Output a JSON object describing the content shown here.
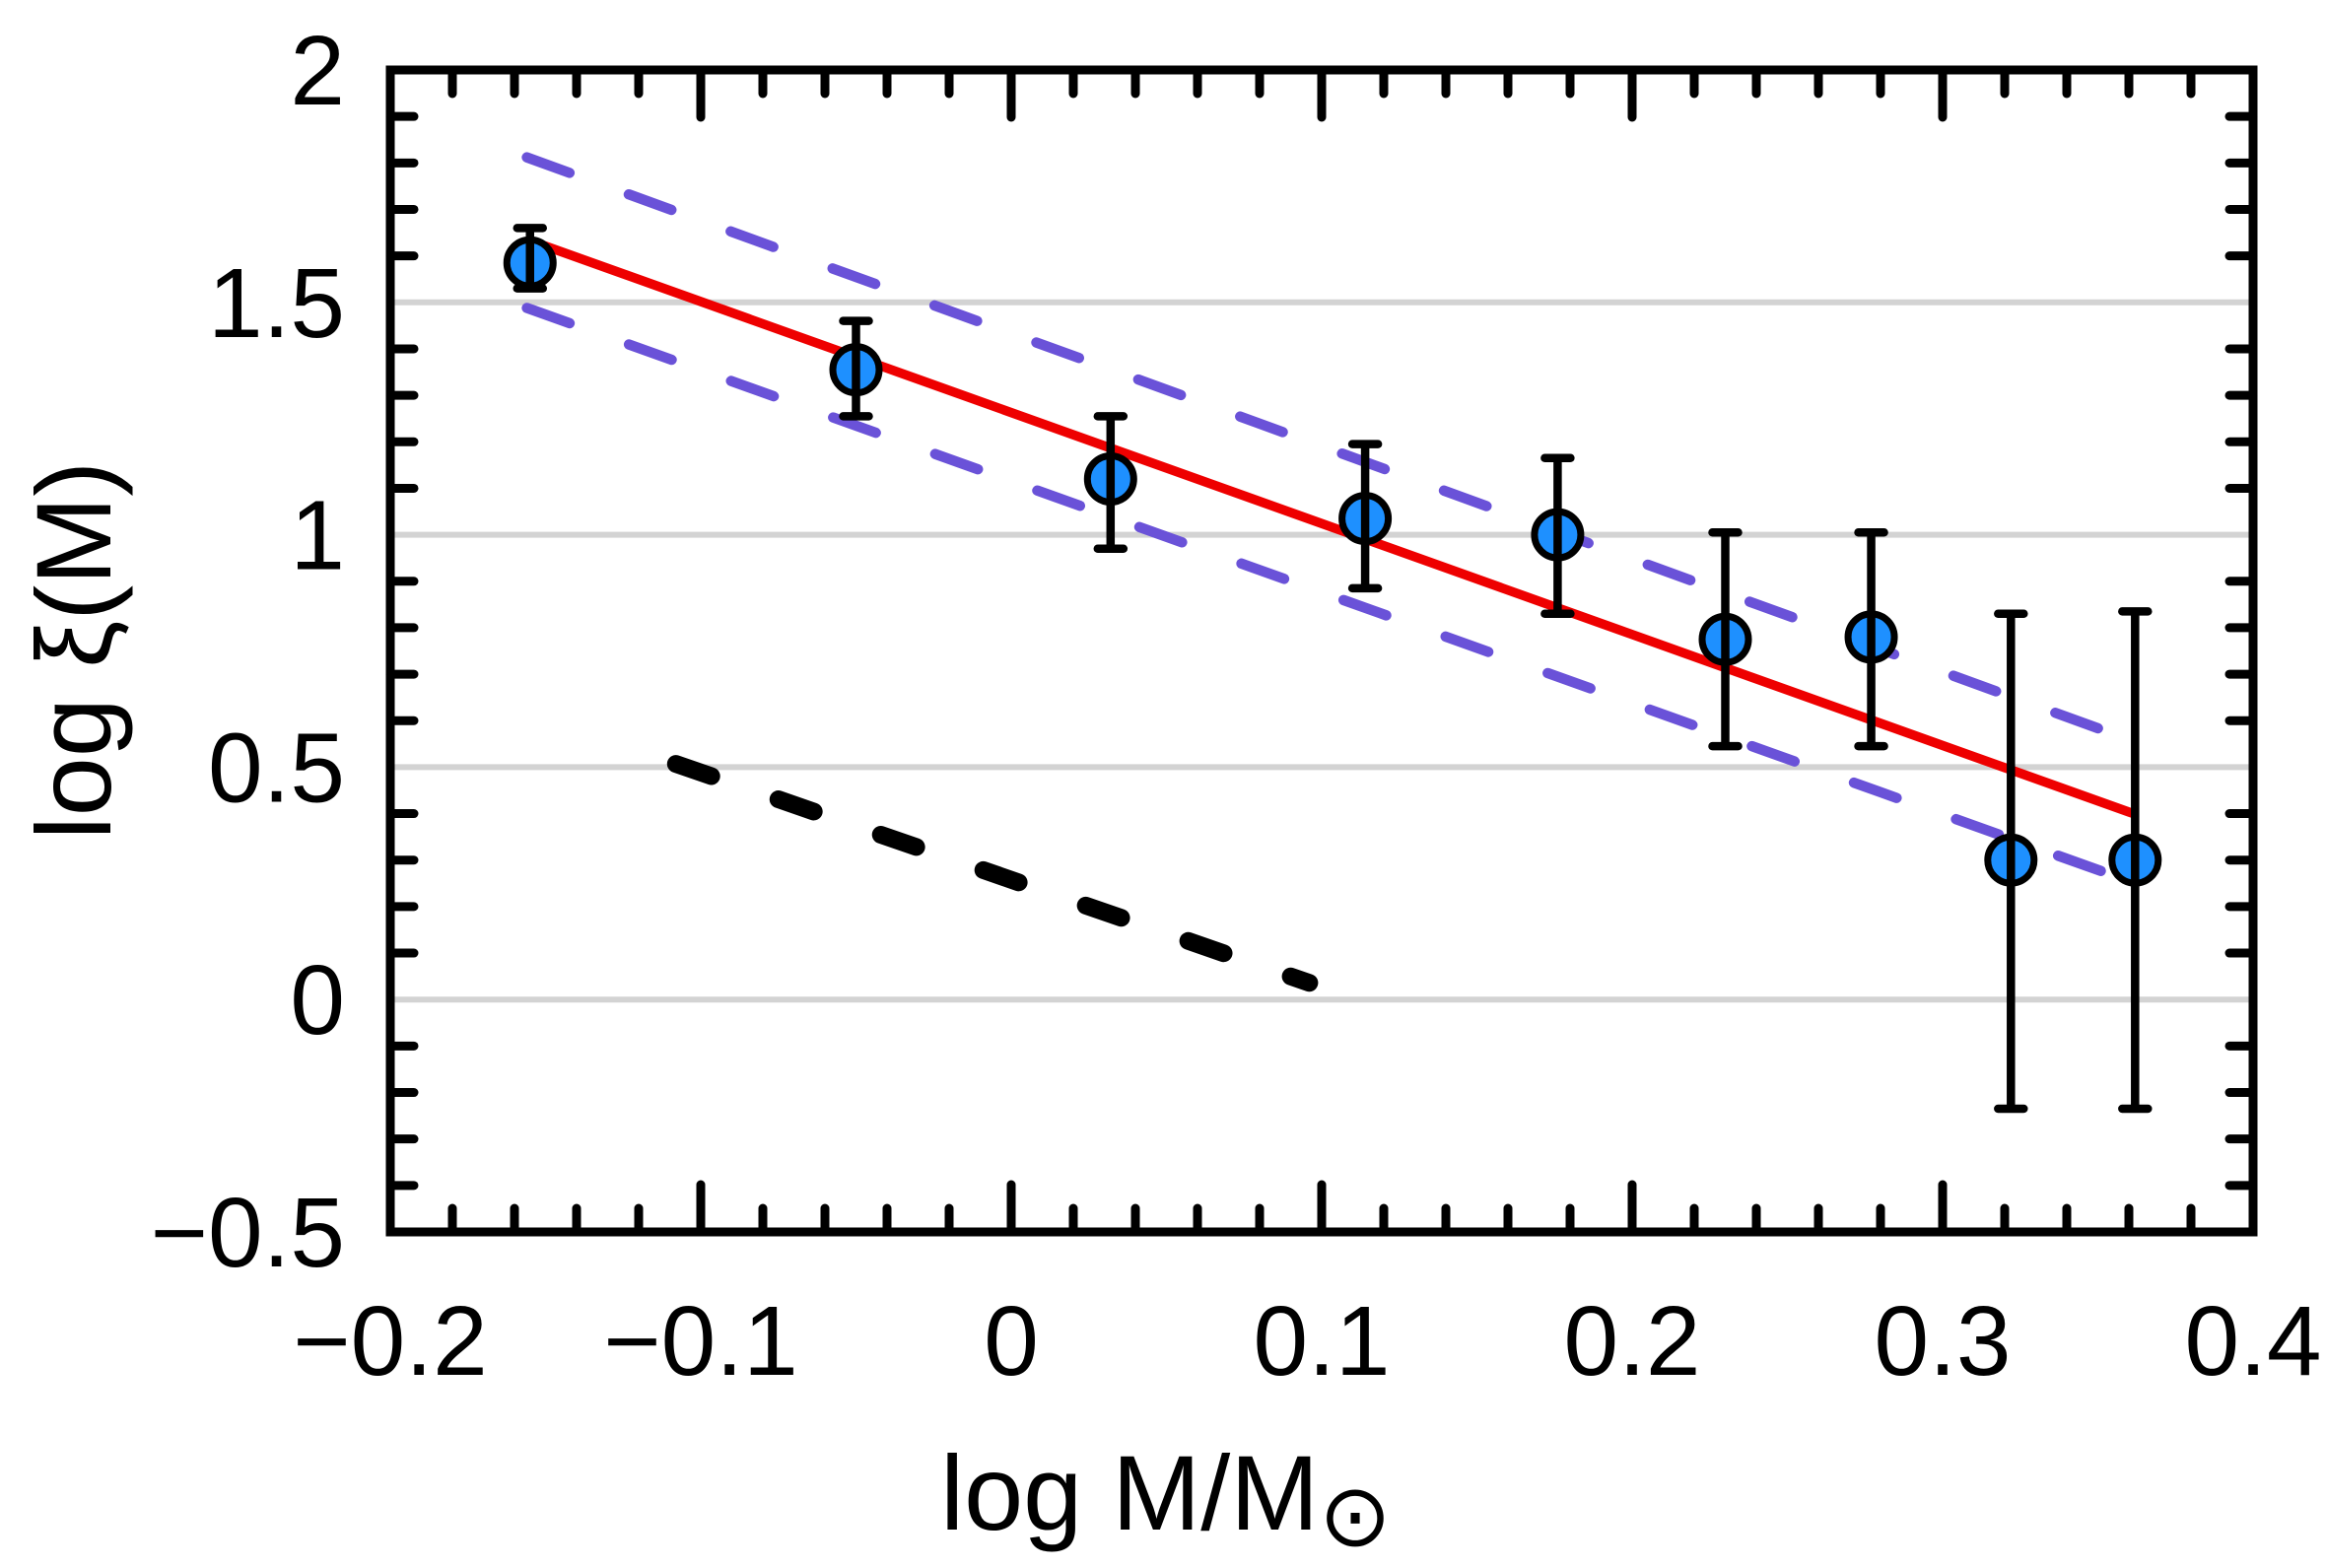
{
  "figure": {
    "background": "#FFFFFF",
    "description": "Scatter plot of log xi(M) versus log M/Msun with power-law fit, dashed confidence bounds and a dashed reference slope segment"
  },
  "chart_data": {
    "type": "scatter",
    "title": "",
    "xlabel": "log M/M⊙",
    "xlabel_parts": {
      "prefix": "log M/M",
      "solar_symbol": "⊙"
    },
    "ylabel": "log ξ(M)",
    "xlim": [
      -0.2,
      0.4
    ],
    "ylim": [
      -0.5,
      2.0
    ],
    "x_tick_values": [
      -0.2,
      -0.1,
      0,
      0.1,
      0.2,
      0.3,
      0.4
    ],
    "x_tick_labels": [
      "−0.2",
      "−0.1",
      "0",
      "0.1",
      "0.2",
      "0.3",
      "0.4"
    ],
    "x_minor_step": 0.02,
    "y_tick_values": [
      -0.5,
      0,
      0.5,
      1,
      1.5,
      2
    ],
    "y_tick_labels": [
      "−0.5",
      "0",
      "0.5",
      "1",
      "1.5",
      "2"
    ],
    "y_minor_step": 0.1,
    "gridline_values": [
      0,
      0.5,
      1,
      1.5
    ],
    "grid": "horizontal-only",
    "legend": "none",
    "series": [
      {
        "name": "binned-mass-function-data",
        "type": "scatter-errorbar",
        "marker": "circle",
        "points": [
          {
            "x": -0.155,
            "y": 1.585,
            "err_up": 0.075,
            "err_down": 0.055
          },
          {
            "x": -0.05,
            "y": 1.355,
            "err_up": 0.105,
            "err_down": 0.1
          },
          {
            "x": 0.032,
            "y": 1.12,
            "err_up": 0.135,
            "err_down": 0.15
          },
          {
            "x": 0.114,
            "y": 1.035,
            "err_up": 0.16,
            "err_down": 0.15
          },
          {
            "x": 0.176,
            "y": 1.0,
            "err_up": 0.165,
            "err_down": 0.17
          },
          {
            "x": 0.23,
            "y": 0.775,
            "err_up": 0.23,
            "err_down": 0.23
          },
          {
            "x": 0.277,
            "y": 0.78,
            "err_up": 0.225,
            "err_down": 0.235
          },
          {
            "x": 0.322,
            "y": 0.3,
            "err_up": 0.53,
            "err_down": 0.535
          },
          {
            "x": 0.362,
            "y": 0.3,
            "err_up": 0.535,
            "err_down": 0.535
          }
        ]
      },
      {
        "name": "power-law-fit",
        "type": "line",
        "style": "solid",
        "slope": -2.39,
        "x": [
          -0.155,
          0.361
        ],
        "y": [
          1.633,
          0.401
        ]
      },
      {
        "name": "upper-confidence-bound",
        "type": "line",
        "style": "dashed",
        "slope": -2.43,
        "x": [
          -0.156,
          0.361
        ],
        "y": [
          1.812,
          0.557
        ]
      },
      {
        "name": "lower-confidence-bound",
        "type": "line",
        "style": "dashed",
        "slope": -2.39,
        "x": [
          -0.156,
          0.36
        ],
        "y": [
          1.488,
          0.255
        ]
      },
      {
        "name": "reference-slope-segment",
        "type": "line",
        "style": "dashed-thick",
        "slope": -2.31,
        "x": [
          -0.108,
          0.096
        ],
        "y": [
          0.507,
          0.036
        ]
      }
    ],
    "colors": {
      "marker_fill": "#1E90FF",
      "marker_edge": "#000000",
      "error_bar": "#000000",
      "fit_line": "#EE0000",
      "confidence_band": "#6A52D8",
      "reference_line": "#000000",
      "gridline": "#D3D3D3",
      "axis": "#000000",
      "text": "#000000",
      "background": "#FFFFFF"
    }
  }
}
